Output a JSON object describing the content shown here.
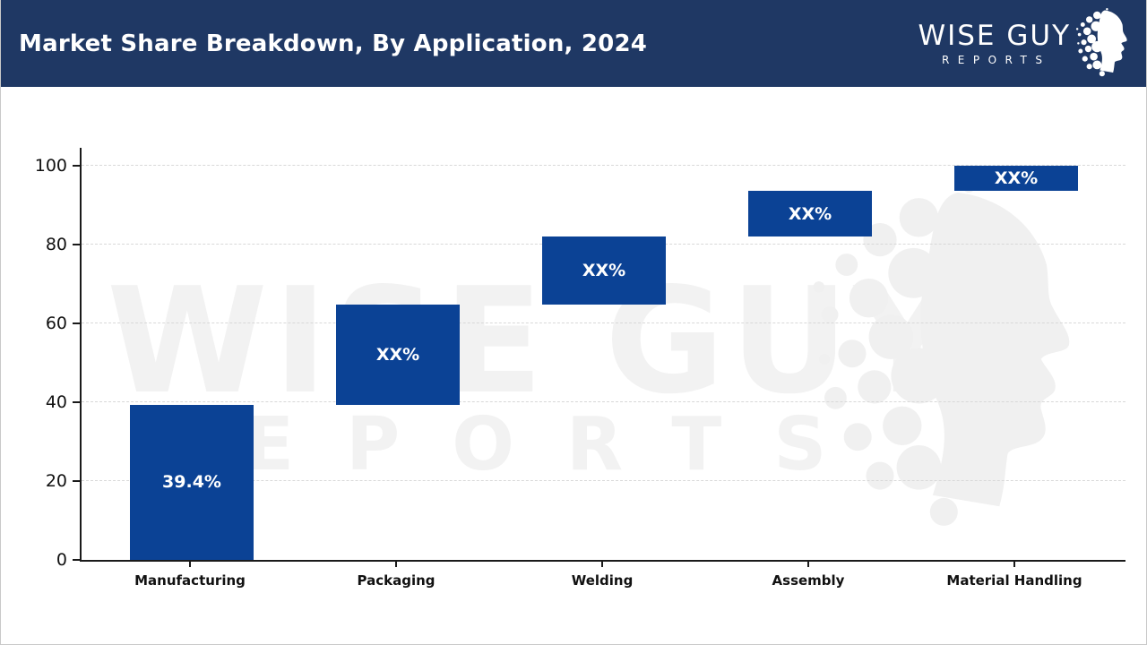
{
  "header": {
    "title": "Market Share Breakdown, By Application, 2024",
    "logo": {
      "line1": "WISE GUY",
      "line2": "REPORTS"
    }
  },
  "watermark": {
    "line1": "WISE GUY",
    "line2": "REPORTS"
  },
  "chart_data": {
    "type": "bar",
    "subtype": "waterfall",
    "title": "Market Share Breakdown, By Application, 2024",
    "categories": [
      "Manufacturing",
      "Packaging",
      "Welding",
      "Assembly",
      "Material Handling"
    ],
    "segments": [
      {
        "category": "Manufacturing",
        "start": 0,
        "end": 39.4,
        "label": "39.4%"
      },
      {
        "category": "Packaging",
        "start": 39.4,
        "end": 64.8,
        "label": "XX%"
      },
      {
        "category": "Welding",
        "start": 64.8,
        "end": 82.0,
        "label": "XX%"
      },
      {
        "category": "Assembly",
        "start": 82.0,
        "end": 93.6,
        "label": "XX%"
      },
      {
        "category": "Material Handling",
        "start": 93.6,
        "end": 100,
        "label": "XX%"
      }
    ],
    "yticks": [
      0,
      20,
      40,
      60,
      80,
      100
    ],
    "ylim": [
      0,
      105
    ],
    "grid": "horizontal-dashed",
    "legend": "none",
    "bar_label_position": "inside-center",
    "colors": {
      "bar": "#0b4295",
      "bar_label": "#ffffff",
      "header_bg": "#1f3864",
      "watermark": "#f2f2f2",
      "grid": "#d8d8d8",
      "axis": "#1a1a1a"
    }
  }
}
